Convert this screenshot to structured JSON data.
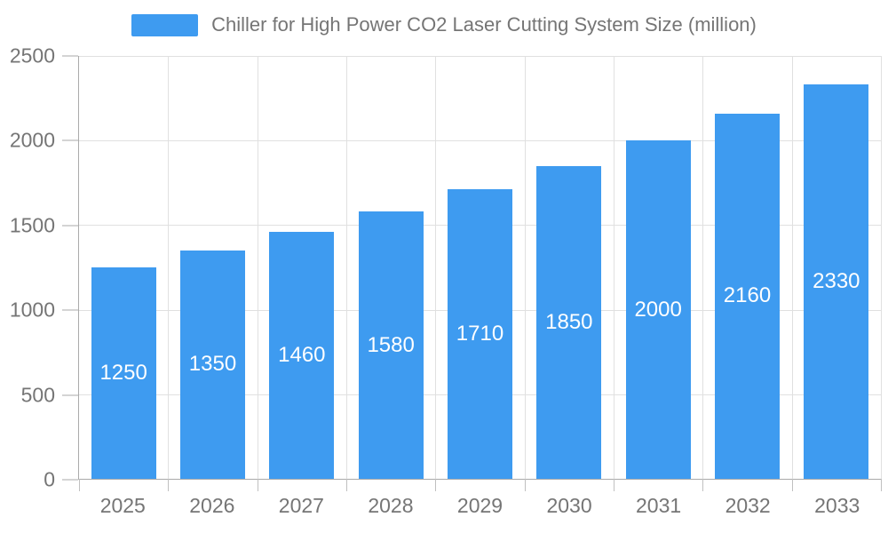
{
  "legend": {
    "swatch_color": "#3E9BF0",
    "label": "Chiller for High Power CO2 Laser Cutting System Size (million)"
  },
  "chart_data": {
    "type": "bar",
    "title": "Chiller for High Power CO2 Laser Cutting System Size (million)",
    "series_name": "Chiller for High Power CO2 Laser Cutting System Size (million)",
    "categories": [
      "2025",
      "2026",
      "2027",
      "2028",
      "2029",
      "2030",
      "2031",
      "2032",
      "2033"
    ],
    "values": [
      1250,
      1350,
      1460,
      1580,
      1710,
      1850,
      2000,
      2160,
      2330
    ],
    "xlabel": "",
    "ylabel": "",
    "ylim": [
      0,
      2500
    ],
    "yticks": [
      0,
      500,
      1000,
      1500,
      2000,
      2500
    ],
    "grid": true,
    "legend_position": "top",
    "bar_color": "#3E9BF0",
    "value_label_color": "#ffffff",
    "axis_text_color": "#757575",
    "gridline_color": "#e0e0e0",
    "axis_line_color": "#aaaaaa",
    "tick_color": "#c0c0c0",
    "background_color": "#ffffff"
  }
}
